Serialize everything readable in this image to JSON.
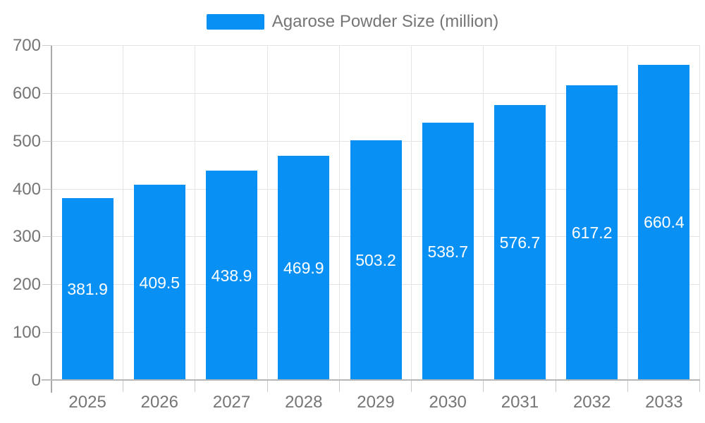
{
  "legend": {
    "label": "Agarose Powder Size (million)",
    "swatch_color": "#0990f5"
  },
  "chart_data": {
    "type": "bar",
    "title": "Agarose Powder Size (million)",
    "series_name": "Agarose Powder Size (million)",
    "categories": [
      "2025",
      "2026",
      "2027",
      "2028",
      "2029",
      "2030",
      "2031",
      "2032",
      "2033"
    ],
    "values": [
      381.9,
      409.5,
      438.9,
      469.9,
      503.2,
      538.7,
      576.7,
      617.2,
      660.4
    ],
    "xlabel": "",
    "ylabel": "",
    "ylim": [
      0,
      700
    ],
    "ytick_step": 100,
    "grid": true,
    "legend_position": "top-center",
    "bar_color": "#0990f5",
    "value_label_color": "#ffffff",
    "axis_text_color": "#757575",
    "gridline_color": "#e4e4e4"
  }
}
